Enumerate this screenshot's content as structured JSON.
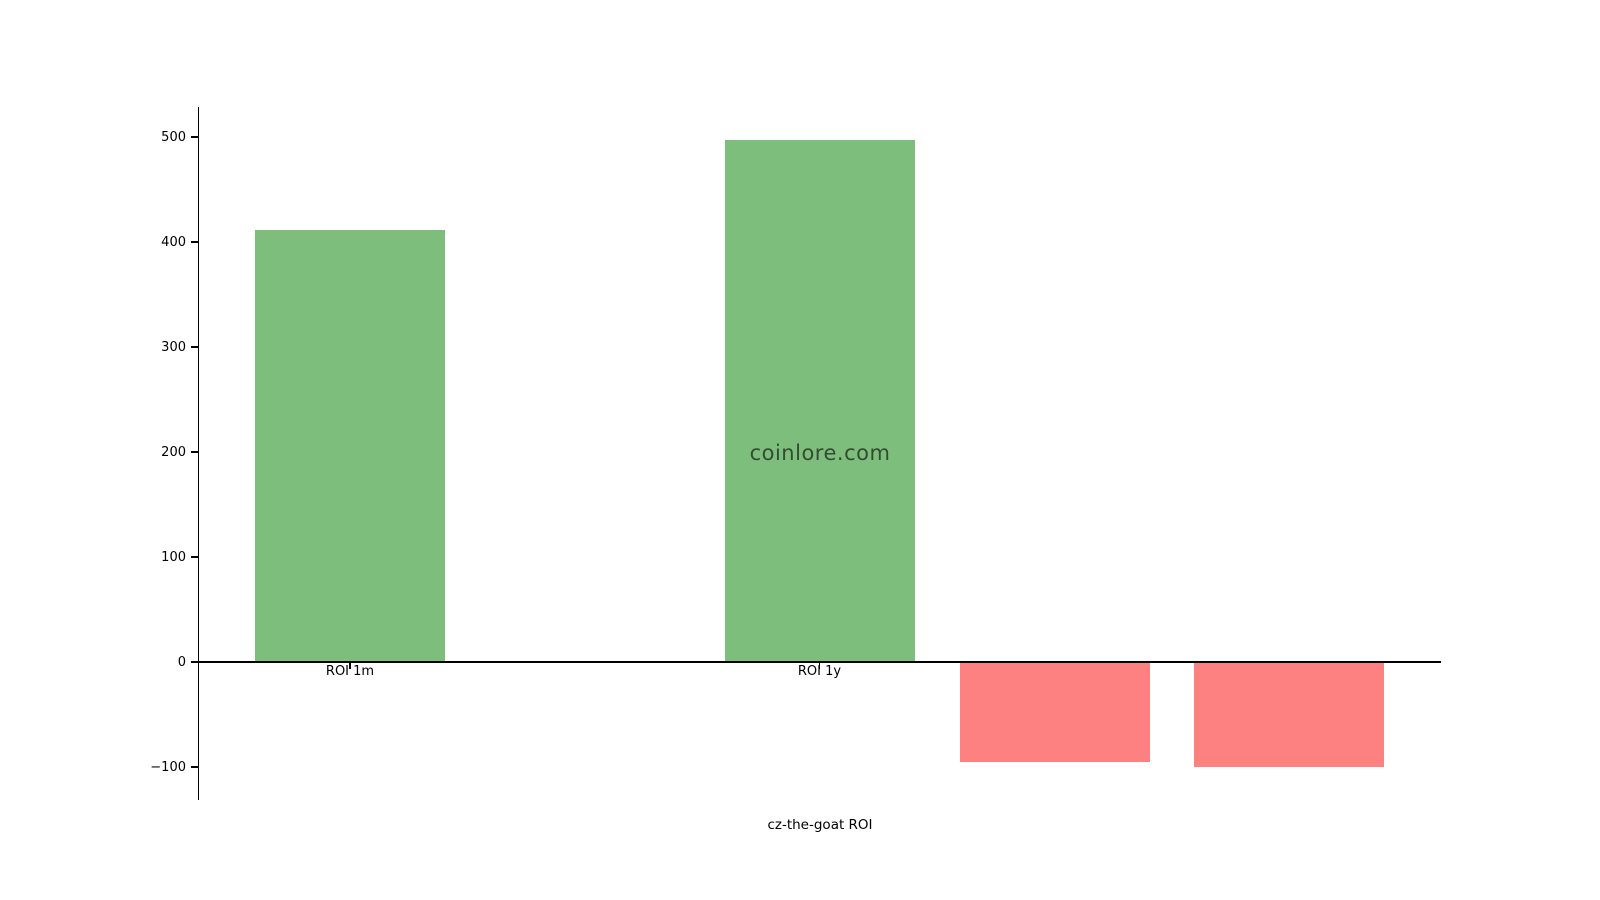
{
  "chart_data": {
    "type": "bar",
    "title": "cz-the-goat ROI",
    "xlabel": "cz-the-goat ROI",
    "ylabel": "",
    "watermark": "coinlore.com",
    "categories": [
      "ROI 1m",
      "ROI 1y",
      "",
      ""
    ],
    "values": [
      411,
      497,
      -95,
      -100
    ],
    "bars": [
      {
        "label": "ROI 1m",
        "value": 411,
        "sign": "positive"
      },
      {
        "label": "ROI 1y",
        "value": 497,
        "sign": "positive"
      },
      {
        "label": "",
        "value": -95,
        "sign": "negative"
      },
      {
        "label": "",
        "value": -100,
        "sign": "negative"
      }
    ],
    "yticks": [
      {
        "label": "500",
        "value": 500
      },
      {
        "label": "400",
        "value": 400
      },
      {
        "label": "300",
        "value": 300
      },
      {
        "label": "200",
        "value": 200
      },
      {
        "label": "100",
        "value": 100
      },
      {
        "label": "0",
        "value": 0
      },
      {
        "label": "−100",
        "value": -100
      }
    ],
    "ylim": [
      -131,
      528
    ],
    "grid": false,
    "legend": "none",
    "colors": {
      "positive": "#7ebe7c",
      "negative": "#fd8181",
      "axis": "#000000",
      "background": "#ffffff"
    }
  }
}
